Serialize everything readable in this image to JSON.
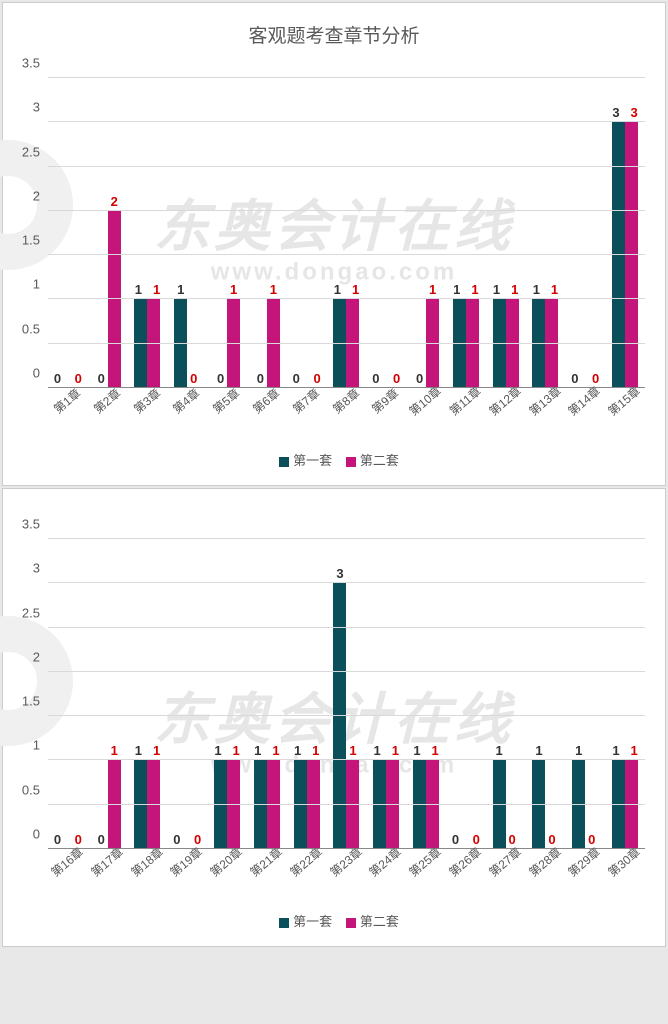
{
  "title": "客观题考查章节分析",
  "watermark_big": "东奥会计在线",
  "watermark_small": "www.dongao.com",
  "legend": {
    "s1": "第一套",
    "s2": "第二套"
  },
  "colors": {
    "series1": "#0b4f5a",
    "series2": "#c4157a",
    "label1": "#333333",
    "label2": "#d40000",
    "grid": "#d9d9d9",
    "background": "#ffffff"
  },
  "yaxis": {
    "min": 0,
    "max": 3.5,
    "step": 0.5
  },
  "chart1": {
    "categories": [
      "第1章",
      "第2章",
      "第3章",
      "第4章",
      "第5章",
      "第6章",
      "第7章",
      "第8章",
      "第9章",
      "第10章",
      "第11章",
      "第12章",
      "第13章",
      "第14章",
      "第15章"
    ],
    "s1": [
      0,
      0,
      1,
      1,
      0,
      0,
      0,
      1,
      0,
      0,
      1,
      1,
      1,
      0,
      3
    ],
    "s2": [
      0,
      2,
      1,
      0,
      1,
      1,
      0,
      1,
      0,
      1,
      1,
      1,
      1,
      0,
      3
    ]
  },
  "chart2": {
    "categories": [
      "第16章",
      "第17章",
      "第18章",
      "第19章",
      "第20章",
      "第21章",
      "第22章",
      "第23章",
      "第24章",
      "第25章",
      "第26章",
      "第27章",
      "第28章",
      "第29章",
      "第30章"
    ],
    "s1": [
      0,
      0,
      1,
      0,
      1,
      1,
      1,
      3,
      1,
      1,
      0,
      1,
      1,
      1,
      1
    ],
    "s2": [
      0,
      1,
      1,
      0,
      1,
      1,
      1,
      1,
      1,
      1,
      0,
      0,
      0,
      0,
      1
    ]
  }
}
